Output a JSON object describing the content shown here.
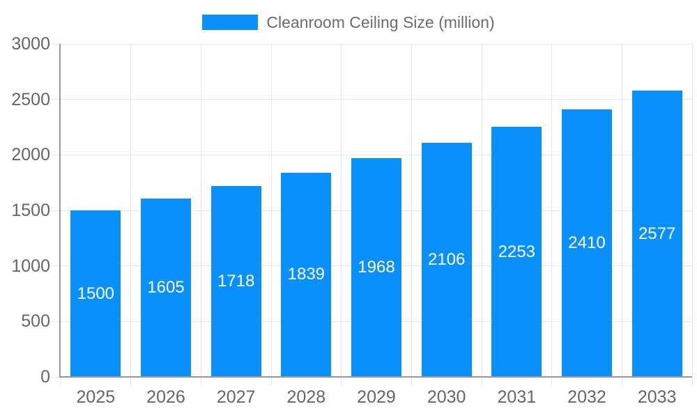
{
  "colors": {
    "bar": "#0a90fa",
    "grid": "#e6e6e6",
    "axis": "#989898",
    "axis_label": "#666666",
    "legend_label": "#6b6b6b",
    "bar_label": "#ffffff",
    "background": "#ffffff"
  },
  "chart_data": {
    "type": "bar",
    "title": "Cleanroom Ceiling Size (million)",
    "categories": [
      "2025",
      "2026",
      "2027",
      "2028",
      "2029",
      "2030",
      "2031",
      "2032",
      "2033"
    ],
    "values": [
      1500,
      1605,
      1718,
      1839,
      1968,
      2106,
      2253,
      2410,
      2577
    ],
    "xlabel": "",
    "ylabel": "",
    "ylim": [
      0,
      3000
    ],
    "yticks": [
      0,
      500,
      1000,
      1500,
      2000,
      2500,
      3000
    ],
    "grid": true,
    "legend_position": "top",
    "legend_entries": [
      {
        "label": "Cleanroom Ceiling Size (million)",
        "marker": "blue-rect"
      }
    ],
    "bar_value_label_position": "inside-center"
  }
}
